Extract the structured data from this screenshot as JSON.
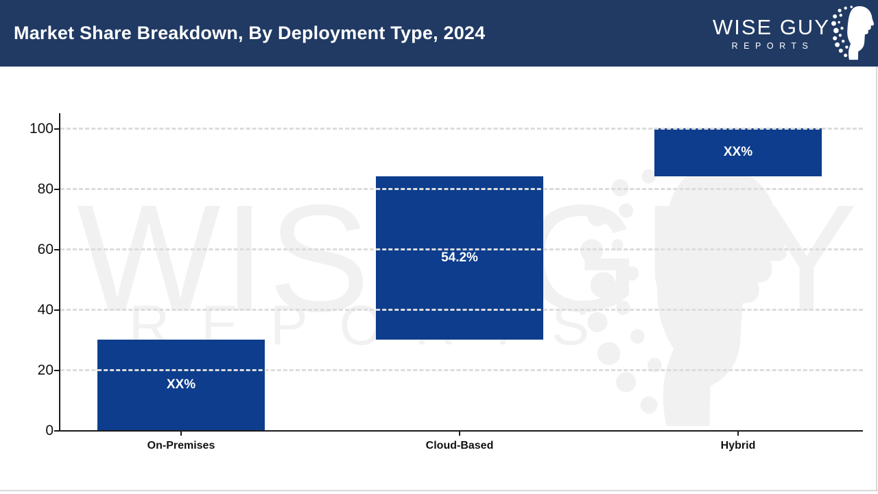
{
  "header": {
    "title": "Market Share Breakdown, By Deployment Type, 2024",
    "bg_color": "#203a64",
    "logo": {
      "wordmark": "WISE GUY",
      "tagline": "REPORTS"
    }
  },
  "watermark": {
    "wordmark": "WISE GUY",
    "tagline": "REPORTS",
    "color": "#f1f1f2"
  },
  "chart_data": {
    "type": "bar",
    "variant": "floating-segment-waterfall",
    "title": "Market Share Breakdown, By Deployment Type, 2024",
    "categories": [
      "On-Premises",
      "Cloud-Based",
      "Hybrid"
    ],
    "segments": [
      {
        "category": "On-Premises",
        "start": 0,
        "end": 30,
        "label": "XX%"
      },
      {
        "category": "Cloud-Based",
        "start": 30,
        "end": 84.2,
        "label": "54.2%"
      },
      {
        "category": "Hybrid",
        "start": 84.2,
        "end": 100,
        "label": "XX%"
      }
    ],
    "xlabel": "",
    "ylabel": "",
    "ylim": [
      0,
      100
    ],
    "yticks": [
      0,
      20,
      40,
      60,
      80,
      100
    ],
    "grid": "horizontal-dashed",
    "legend": null,
    "bar_color": "#0d3d8c",
    "bar_label_color": "#ffffff"
  }
}
